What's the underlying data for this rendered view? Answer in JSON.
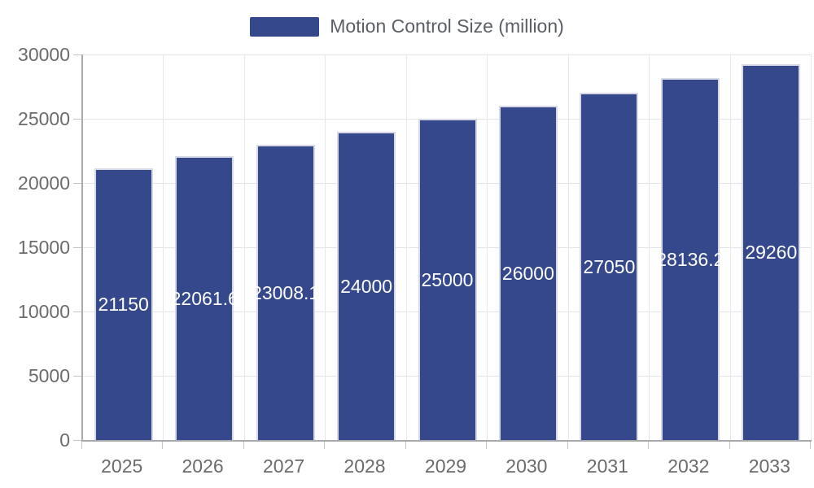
{
  "legend": {
    "label": "Motion Control Size (million)"
  },
  "chart_data": {
    "type": "bar",
    "title": "Motion Control Size (million)",
    "categories": [
      "2025",
      "2026",
      "2027",
      "2028",
      "2029",
      "2030",
      "2031",
      "2032",
      "2033"
    ],
    "series": [
      {
        "name": "Motion Control Size (million)",
        "values": [
          21150,
          22061.6,
          23008.1,
          24000,
          25000,
          26000,
          27050,
          28136.2,
          29260
        ],
        "value_labels": [
          "21150",
          "22061.6",
          "23008.1",
          "24000",
          "25000",
          "26000",
          "27050",
          "28136.2",
          "29260"
        ]
      }
    ],
    "xlabel": "",
    "ylabel": "",
    "ylim": [
      0,
      30000
    ],
    "y_ticks": [
      0,
      5000,
      10000,
      15000,
      20000,
      25000,
      30000
    ],
    "grid": true,
    "legend_position": "top-center",
    "value_label_position": "inside-center",
    "colors": {
      "bar_fill": "#36488C",
      "bar_border": "#D6D9E3",
      "value_label_text": "#FFFFFF",
      "axis_text": "#6B6B6B",
      "legend_text": "#5A5F66",
      "grid_line": "#E3E3E9",
      "axis_line": "#A9A9AD",
      "background": "#FFFFFF"
    }
  }
}
